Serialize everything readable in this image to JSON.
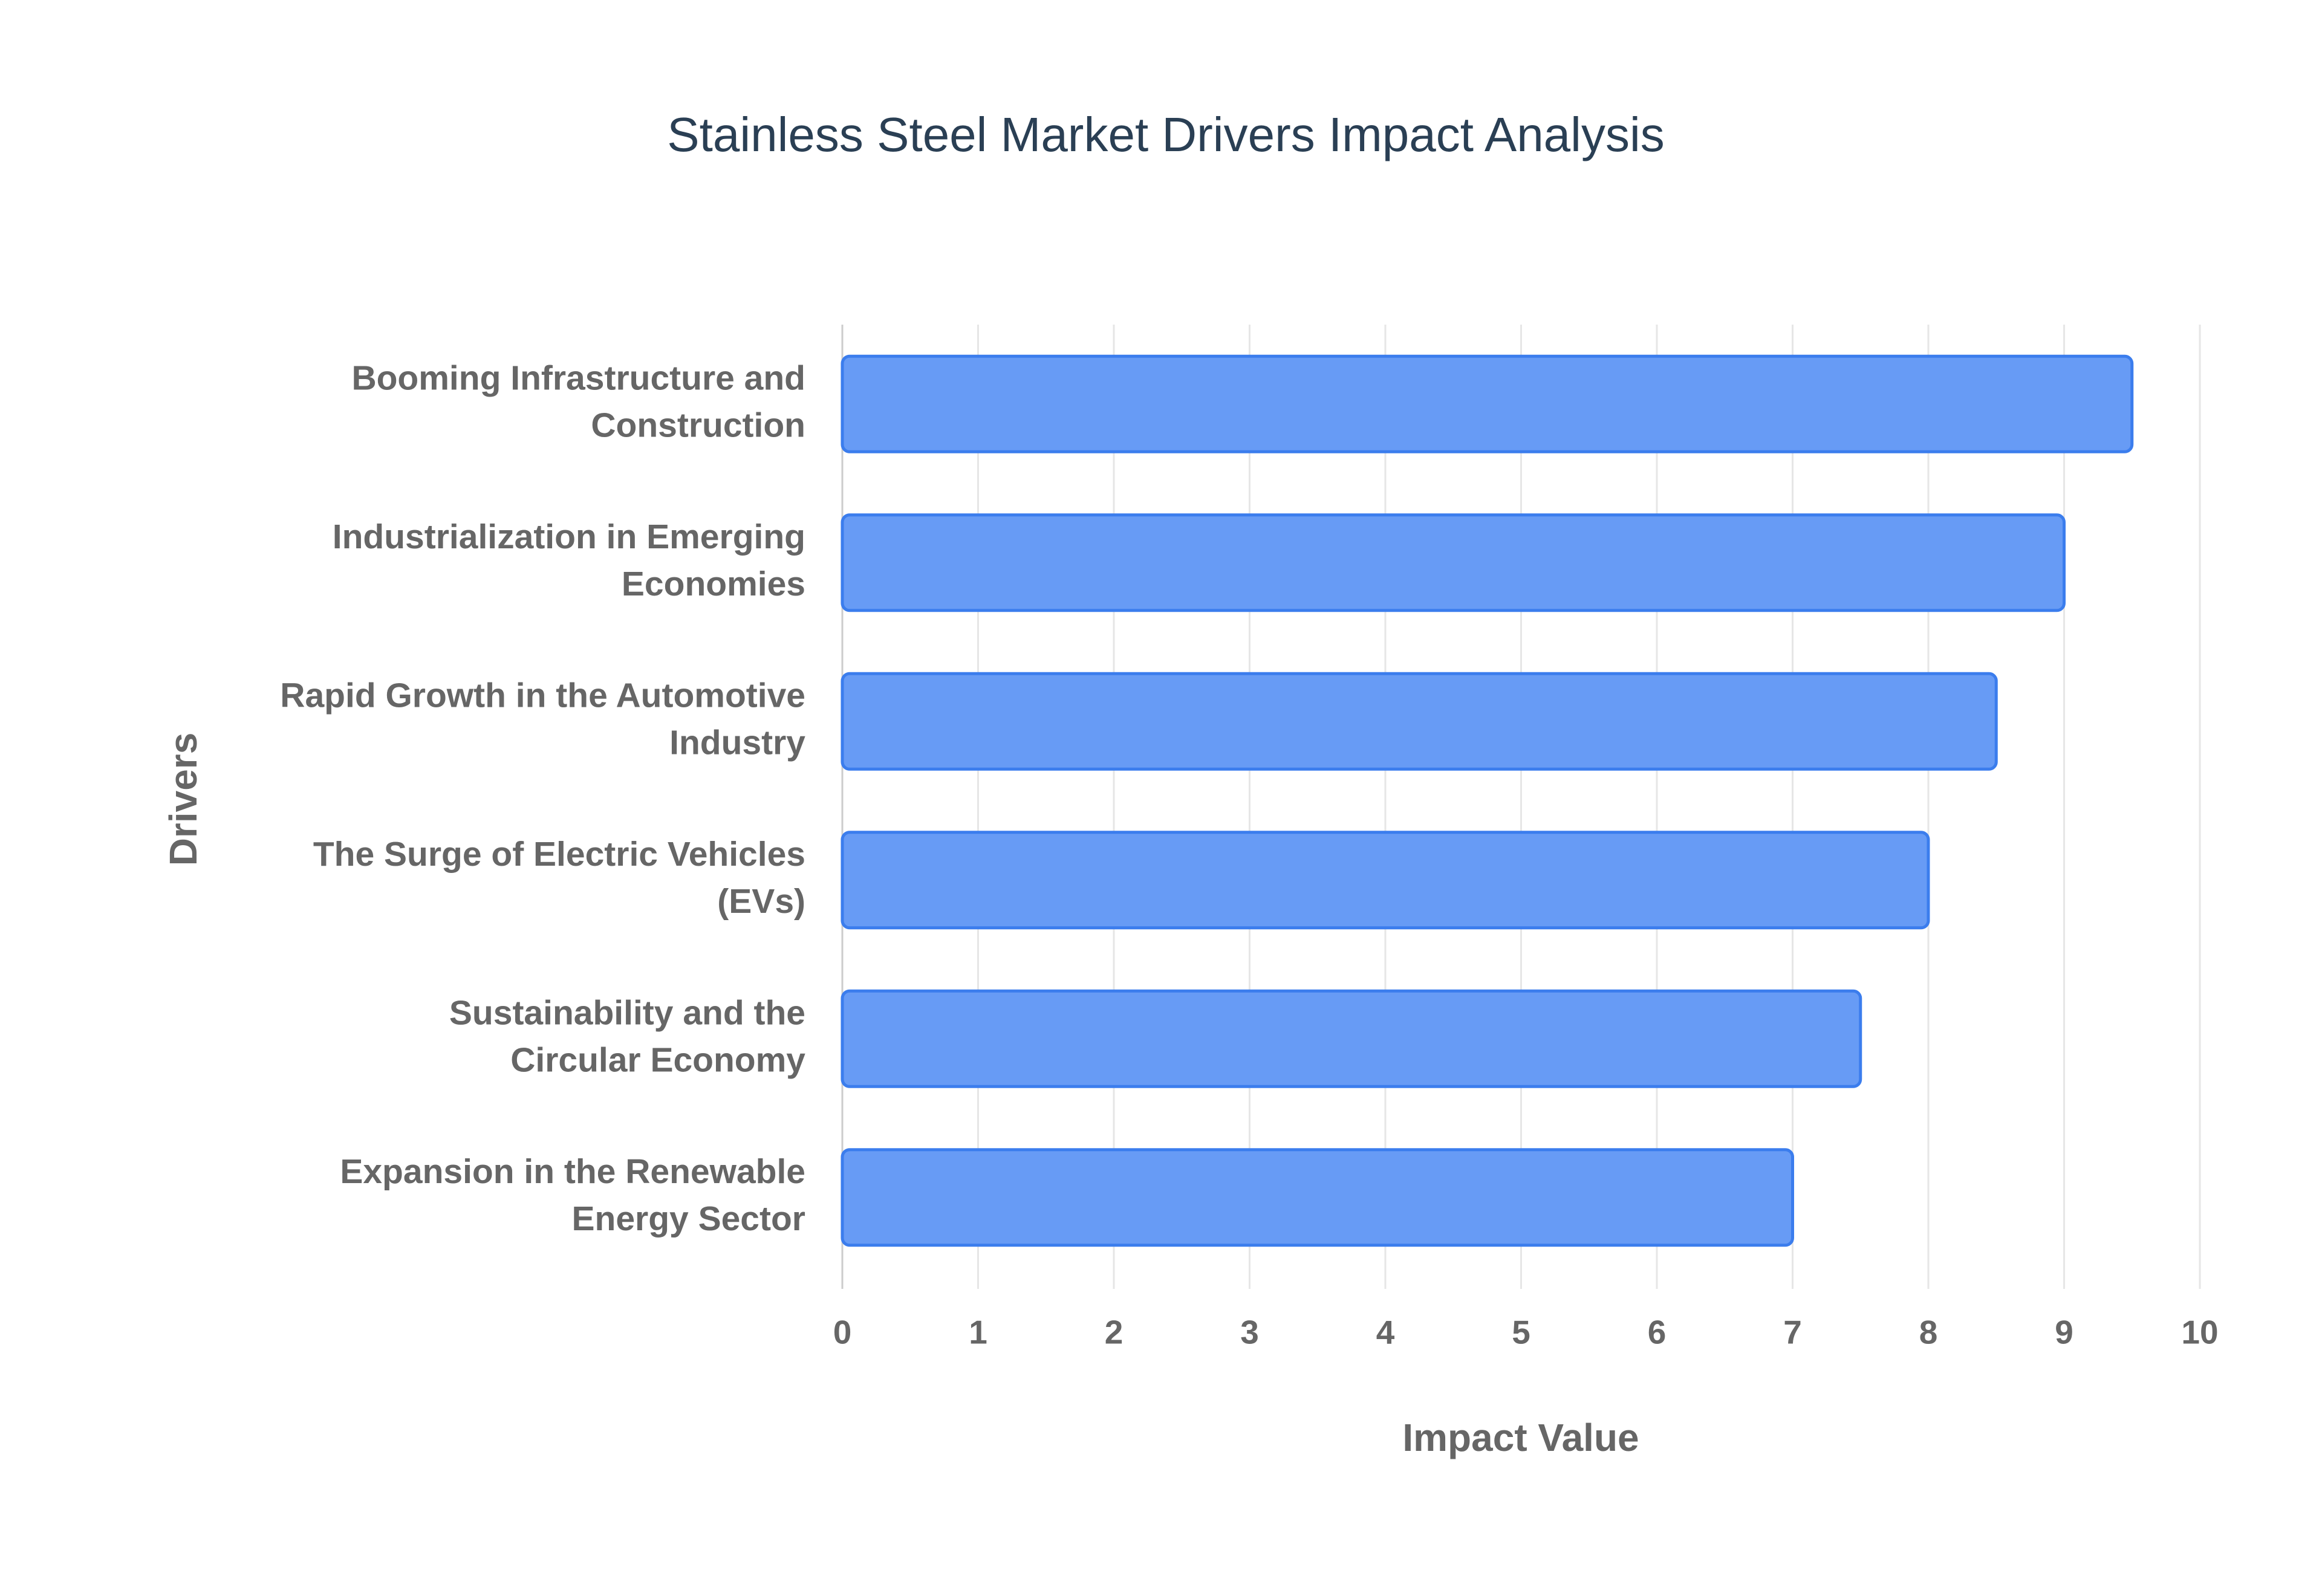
{
  "chart_data": {
    "type": "bar",
    "orientation": "horizontal",
    "title": "Stainless Steel Market Drivers Impact Analysis",
    "x_label": "Impact Value",
    "y_label": "Drivers",
    "categories": [
      "Booming Infrastructure and Construction",
      "Industrialization in Emerging Economies",
      "Rapid Growth in the Automotive Industry",
      "The Surge of Electric Vehicles (EVs)",
      "Sustainability and the Circular Economy",
      "Expansion in the Renewable Energy Sector"
    ],
    "values": [
      9.5,
      9,
      8.5,
      8,
      7.5,
      7
    ],
    "color": "#6499f5",
    "edge_color": "#3b7ded",
    "xlim": [
      0,
      10
    ],
    "xticks": [
      0,
      1,
      2,
      3,
      4,
      5,
      6,
      7,
      8,
      9,
      10
    ],
    "grid": true
  }
}
